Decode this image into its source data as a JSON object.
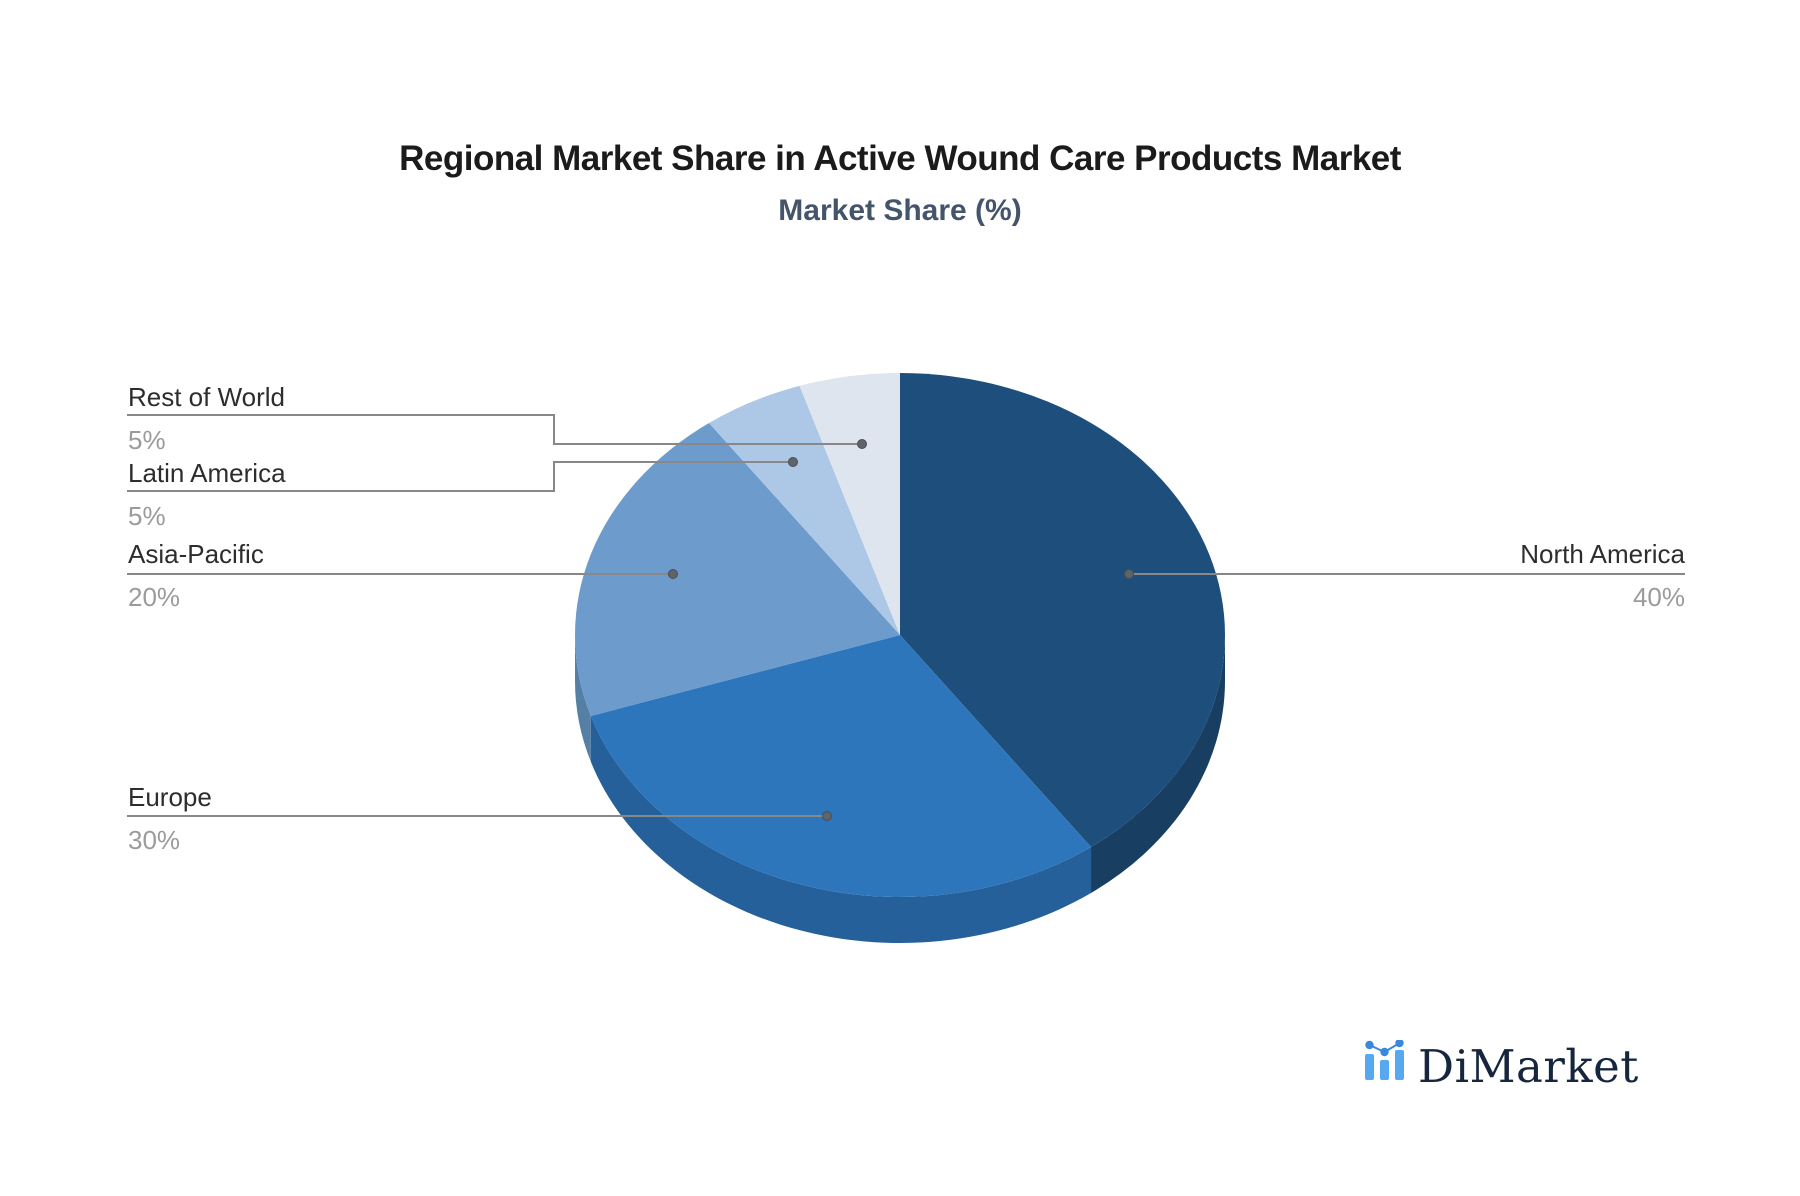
{
  "title": "Regional Market Share in Active Wound Care Products Market",
  "subtitle": "Market Share (%)",
  "logo": {
    "text": "DiMarket"
  },
  "chart_data": {
    "type": "pie",
    "title": "Regional Market Share in Active Wound Care Products Market",
    "subtitle": "Market Share (%)",
    "unit": "percent",
    "style": "3d-pie",
    "start_angle_deg": 0,
    "direction": "clockwise",
    "connector_color": "#888888",
    "label_color": "#2d2d2d",
    "value_color": "#9b9b9b",
    "slices": [
      {
        "label": "North America",
        "value": 40,
        "value_label": "40%",
        "color": "#1E4E7C",
        "side_color": "#183E61"
      },
      {
        "label": "Europe",
        "value": 30,
        "value_label": "30%",
        "color": "#2E76BC",
        "side_color": "#25609A"
      },
      {
        "label": "Asia-Pacific",
        "value": 20,
        "value_label": "20%",
        "color": "#6D9BCB",
        "side_color": "#567FA5"
      },
      {
        "label": "Latin America",
        "value": 5,
        "value_label": "5%",
        "color": "#ADC8E6",
        "side_color": "#8FA9C2"
      },
      {
        "label": "Rest of World",
        "value": 5,
        "value_label": "5%",
        "color": "#DEE5EF",
        "side_color": "#B8C2CF"
      }
    ]
  }
}
